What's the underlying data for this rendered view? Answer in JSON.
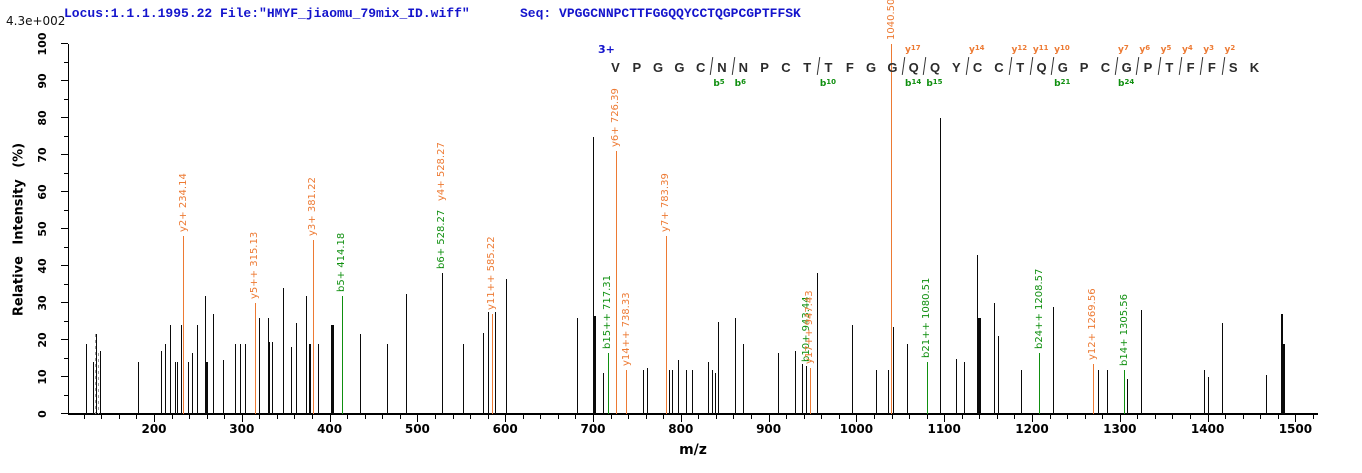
{
  "header": {
    "locus_file": "Locus:1.1.1.1995.22 File:\"HMYF_jiaomu_79mix_ID.wiff\"",
    "seq_prefix": "Seq: ",
    "sequence": "VPGGCNNPCTTFGGQQYCCTQGPCGPTFFSK",
    "base_peak_intensity": "4.3e+002"
  },
  "colors": {
    "header_blue": "#1414CC",
    "y_ion_orange": "#ED7A33",
    "b_ion_green": "#0F8F0F",
    "peak_black": "#0A0A0A",
    "dashed_gray": "#9A9A9A",
    "sequence_text": "#2B2B2B"
  },
  "sequence_overlay": {
    "charge": "3+",
    "peptide": "VPGGCNNPCTTFGGQQYCCTQGPCGPTFFSK",
    "cleavages": [
      {
        "after": 5,
        "b": "b5"
      },
      {
        "after": 6,
        "b": "b6"
      },
      {
        "after": 10,
        "b": "b10"
      },
      {
        "after": 14,
        "b": "b14",
        "y": "y17"
      },
      {
        "after": 15,
        "b": "b15"
      },
      {
        "after": 17,
        "y": "y14"
      },
      {
        "after": 19,
        "y": "y12"
      },
      {
        "after": 20,
        "y": "y11"
      },
      {
        "after": 21,
        "b": "b21",
        "y": "y10"
      },
      {
        "after": 24,
        "b": "b24",
        "y": "y7"
      },
      {
        "after": 25,
        "y": "y6"
      },
      {
        "after": 26,
        "y": "y5"
      },
      {
        "after": 27,
        "y": "y4"
      },
      {
        "after": 28,
        "y": "y3"
      },
      {
        "after": 29,
        "y": "y2"
      }
    ]
  },
  "chart_data": {
    "type": "bar",
    "subtype": "ms2-stick-spectrum",
    "xlabel": "m/z",
    "ylabel": "Relative  Intensity  (%)",
    "xlim": [
      102,
      1526
    ],
    "ylim": [
      0,
      100
    ],
    "x_major_ticks": [
      200,
      300,
      400,
      500,
      600,
      700,
      800,
      900,
      1000,
      1100,
      1200,
      1300,
      1400,
      1500
    ],
    "x_minor_step": 20,
    "y_major_ticks": [
      0,
      10,
      20,
      30,
      40,
      50,
      60,
      70,
      80,
      90,
      100
    ],
    "y_minor_step": 5,
    "peaks": [
      {
        "mz": 123,
        "i": 19
      },
      {
        "mz": 131,
        "i": 14
      },
      {
        "mz": 133,
        "i": 21.5,
        "c": "dash"
      },
      {
        "mz": 135,
        "i": 21.5
      },
      {
        "mz": 137,
        "i": 16.5,
        "c": "dash"
      },
      {
        "mz": 138.5,
        "i": 17
      },
      {
        "mz": 182,
        "i": 14
      },
      {
        "mz": 209,
        "i": 17
      },
      {
        "mz": 213,
        "i": 19
      },
      {
        "mz": 219,
        "i": 24
      },
      {
        "mz": 224,
        "i": 14
      },
      {
        "mz": 227,
        "i": 14
      },
      {
        "mz": 231,
        "i": 24
      },
      {
        "mz": 234.14,
        "i": 48,
        "c": "y",
        "label": "y2+ 234.14"
      },
      {
        "mz": 239,
        "i": 14
      },
      {
        "mz": 244,
        "i": 16.5
      },
      {
        "mz": 250,
        "i": 24
      },
      {
        "mz": 259,
        "i": 32
      },
      {
        "mz": 260.5,
        "i": 14,
        "w": 2
      },
      {
        "mz": 268,
        "i": 27
      },
      {
        "mz": 279,
        "i": 14.5
      },
      {
        "mz": 293,
        "i": 19
      },
      {
        "mz": 298,
        "i": 19
      },
      {
        "mz": 304,
        "i": 19
      },
      {
        "mz": 315.13,
        "i": 30,
        "c": "y",
        "label": "y5++ 315.13"
      },
      {
        "mz": 320,
        "i": 26
      },
      {
        "mz": 330,
        "i": 26
      },
      {
        "mz": 331.5,
        "i": 19.5,
        "w": 2
      },
      {
        "mz": 335,
        "i": 19.5
      },
      {
        "mz": 348,
        "i": 34
      },
      {
        "mz": 357,
        "i": 18
      },
      {
        "mz": 362,
        "i": 24.5
      },
      {
        "mz": 374,
        "i": 32
      },
      {
        "mz": 378,
        "i": 19,
        "w": 2
      },
      {
        "mz": 381.22,
        "i": 47,
        "c": "y",
        "label": "y3+ 381.22"
      },
      {
        "mz": 387,
        "i": 19
      },
      {
        "mz": 403,
        "i": 24,
        "w": 3
      },
      {
        "mz": 414.18,
        "i": 32,
        "c": "b",
        "label": "b5+ 414.18"
      },
      {
        "mz": 435,
        "i": 21.5
      },
      {
        "mz": 466,
        "i": 19
      },
      {
        "mz": 488,
        "i": 32.5
      },
      {
        "mz": 528.27,
        "i": 38,
        "labels": [
          {
            "t": "y4+ 528.27",
            "c": "y"
          },
          {
            "t": "b6+ 528.27",
            "c": "b"
          }
        ]
      },
      {
        "mz": 553,
        "i": 19
      },
      {
        "mz": 575,
        "i": 22
      },
      {
        "mz": 581.5,
        "i": 27.5
      },
      {
        "mz": 585.22,
        "i": 27,
        "c": "y",
        "label": "y11++ 585.22"
      },
      {
        "mz": 588.5,
        "i": 27.5
      },
      {
        "mz": 601,
        "i": 36.5
      },
      {
        "mz": 682,
        "i": 26
      },
      {
        "mz": 700,
        "i": 75
      },
      {
        "mz": 702,
        "i": 26.5,
        "w": 2
      },
      {
        "mz": 712,
        "i": 11
      },
      {
        "mz": 717.31,
        "i": 16.5,
        "c": "b",
        "label": "b15++ 717.31"
      },
      {
        "mz": 726.39,
        "i": 71,
        "c": "y",
        "label": "y6+ 726.39"
      },
      {
        "mz": 738.33,
        "i": 12,
        "c": "y",
        "label": "y14++ 738.33"
      },
      {
        "mz": 757,
        "i": 12
      },
      {
        "mz": 762,
        "i": 12.5
      },
      {
        "mz": 783.39,
        "i": 48,
        "c": "y",
        "label": "y7+ 783.39"
      },
      {
        "mz": 787,
        "i": 12
      },
      {
        "mz": 790,
        "i": 12
      },
      {
        "mz": 797,
        "i": 14.5
      },
      {
        "mz": 807,
        "i": 12
      },
      {
        "mz": 813,
        "i": 12
      },
      {
        "mz": 831,
        "i": 14
      },
      {
        "mz": 836,
        "i": 12
      },
      {
        "mz": 840,
        "i": 11
      },
      {
        "mz": 842.5,
        "i": 25
      },
      {
        "mz": 862,
        "i": 26
      },
      {
        "mz": 871,
        "i": 19
      },
      {
        "mz": 911,
        "i": 16.5
      },
      {
        "mz": 931,
        "i": 17
      },
      {
        "mz": 939,
        "i": 13.5
      },
      {
        "mz": 943.44,
        "i": 13,
        "label": "b10+ 943.44",
        "lc": "b"
      },
      {
        "mz": 947.43,
        "i": 12.5,
        "c": "y",
        "label": "y17++ 947.43"
      },
      {
        "mz": 956,
        "i": 38
      },
      {
        "mz": 995,
        "i": 24
      },
      {
        "mz": 1023,
        "i": 12
      },
      {
        "mz": 1037,
        "i": 12
      },
      {
        "mz": 1040.5,
        "i": 100,
        "c": "y",
        "label": "1040.50"
      },
      {
        "mz": 1042.5,
        "i": 23.5
      },
      {
        "mz": 1058,
        "i": 19
      },
      {
        "mz": 1080.51,
        "i": 14,
        "c": "b",
        "label": "b21++ 1080.51"
      },
      {
        "mz": 1096,
        "i": 80
      },
      {
        "mz": 1114,
        "i": 15
      },
      {
        "mz": 1123,
        "i": 14
      },
      {
        "mz": 1138,
        "i": 43
      },
      {
        "mz": 1140,
        "i": 26,
        "w": 3
      },
      {
        "mz": 1157,
        "i": 30
      },
      {
        "mz": 1162,
        "i": 21
      },
      {
        "mz": 1188,
        "i": 12
      },
      {
        "mz": 1208.57,
        "i": 16.5,
        "c": "b",
        "label": "b24++ 1208.57"
      },
      {
        "mz": 1224,
        "i": 29
      },
      {
        "mz": 1269.56,
        "i": 13.5,
        "c": "y",
        "label": "y12+ 1269.56"
      },
      {
        "mz": 1276,
        "i": 12
      },
      {
        "mz": 1286,
        "i": 12
      },
      {
        "mz": 1305.56,
        "i": 12,
        "c": "b",
        "label": "b14+ 1305.56"
      },
      {
        "mz": 1308.5,
        "i": 9.5
      },
      {
        "mz": 1325,
        "i": 28
      },
      {
        "mz": 1397,
        "i": 12
      },
      {
        "mz": 1400.5,
        "i": 10
      },
      {
        "mz": 1417,
        "i": 24.5
      },
      {
        "mz": 1467,
        "i": 10.5
      },
      {
        "mz": 1485,
        "i": 27,
        "w": 2
      },
      {
        "mz": 1487,
        "i": 19,
        "w": 2
      }
    ]
  }
}
